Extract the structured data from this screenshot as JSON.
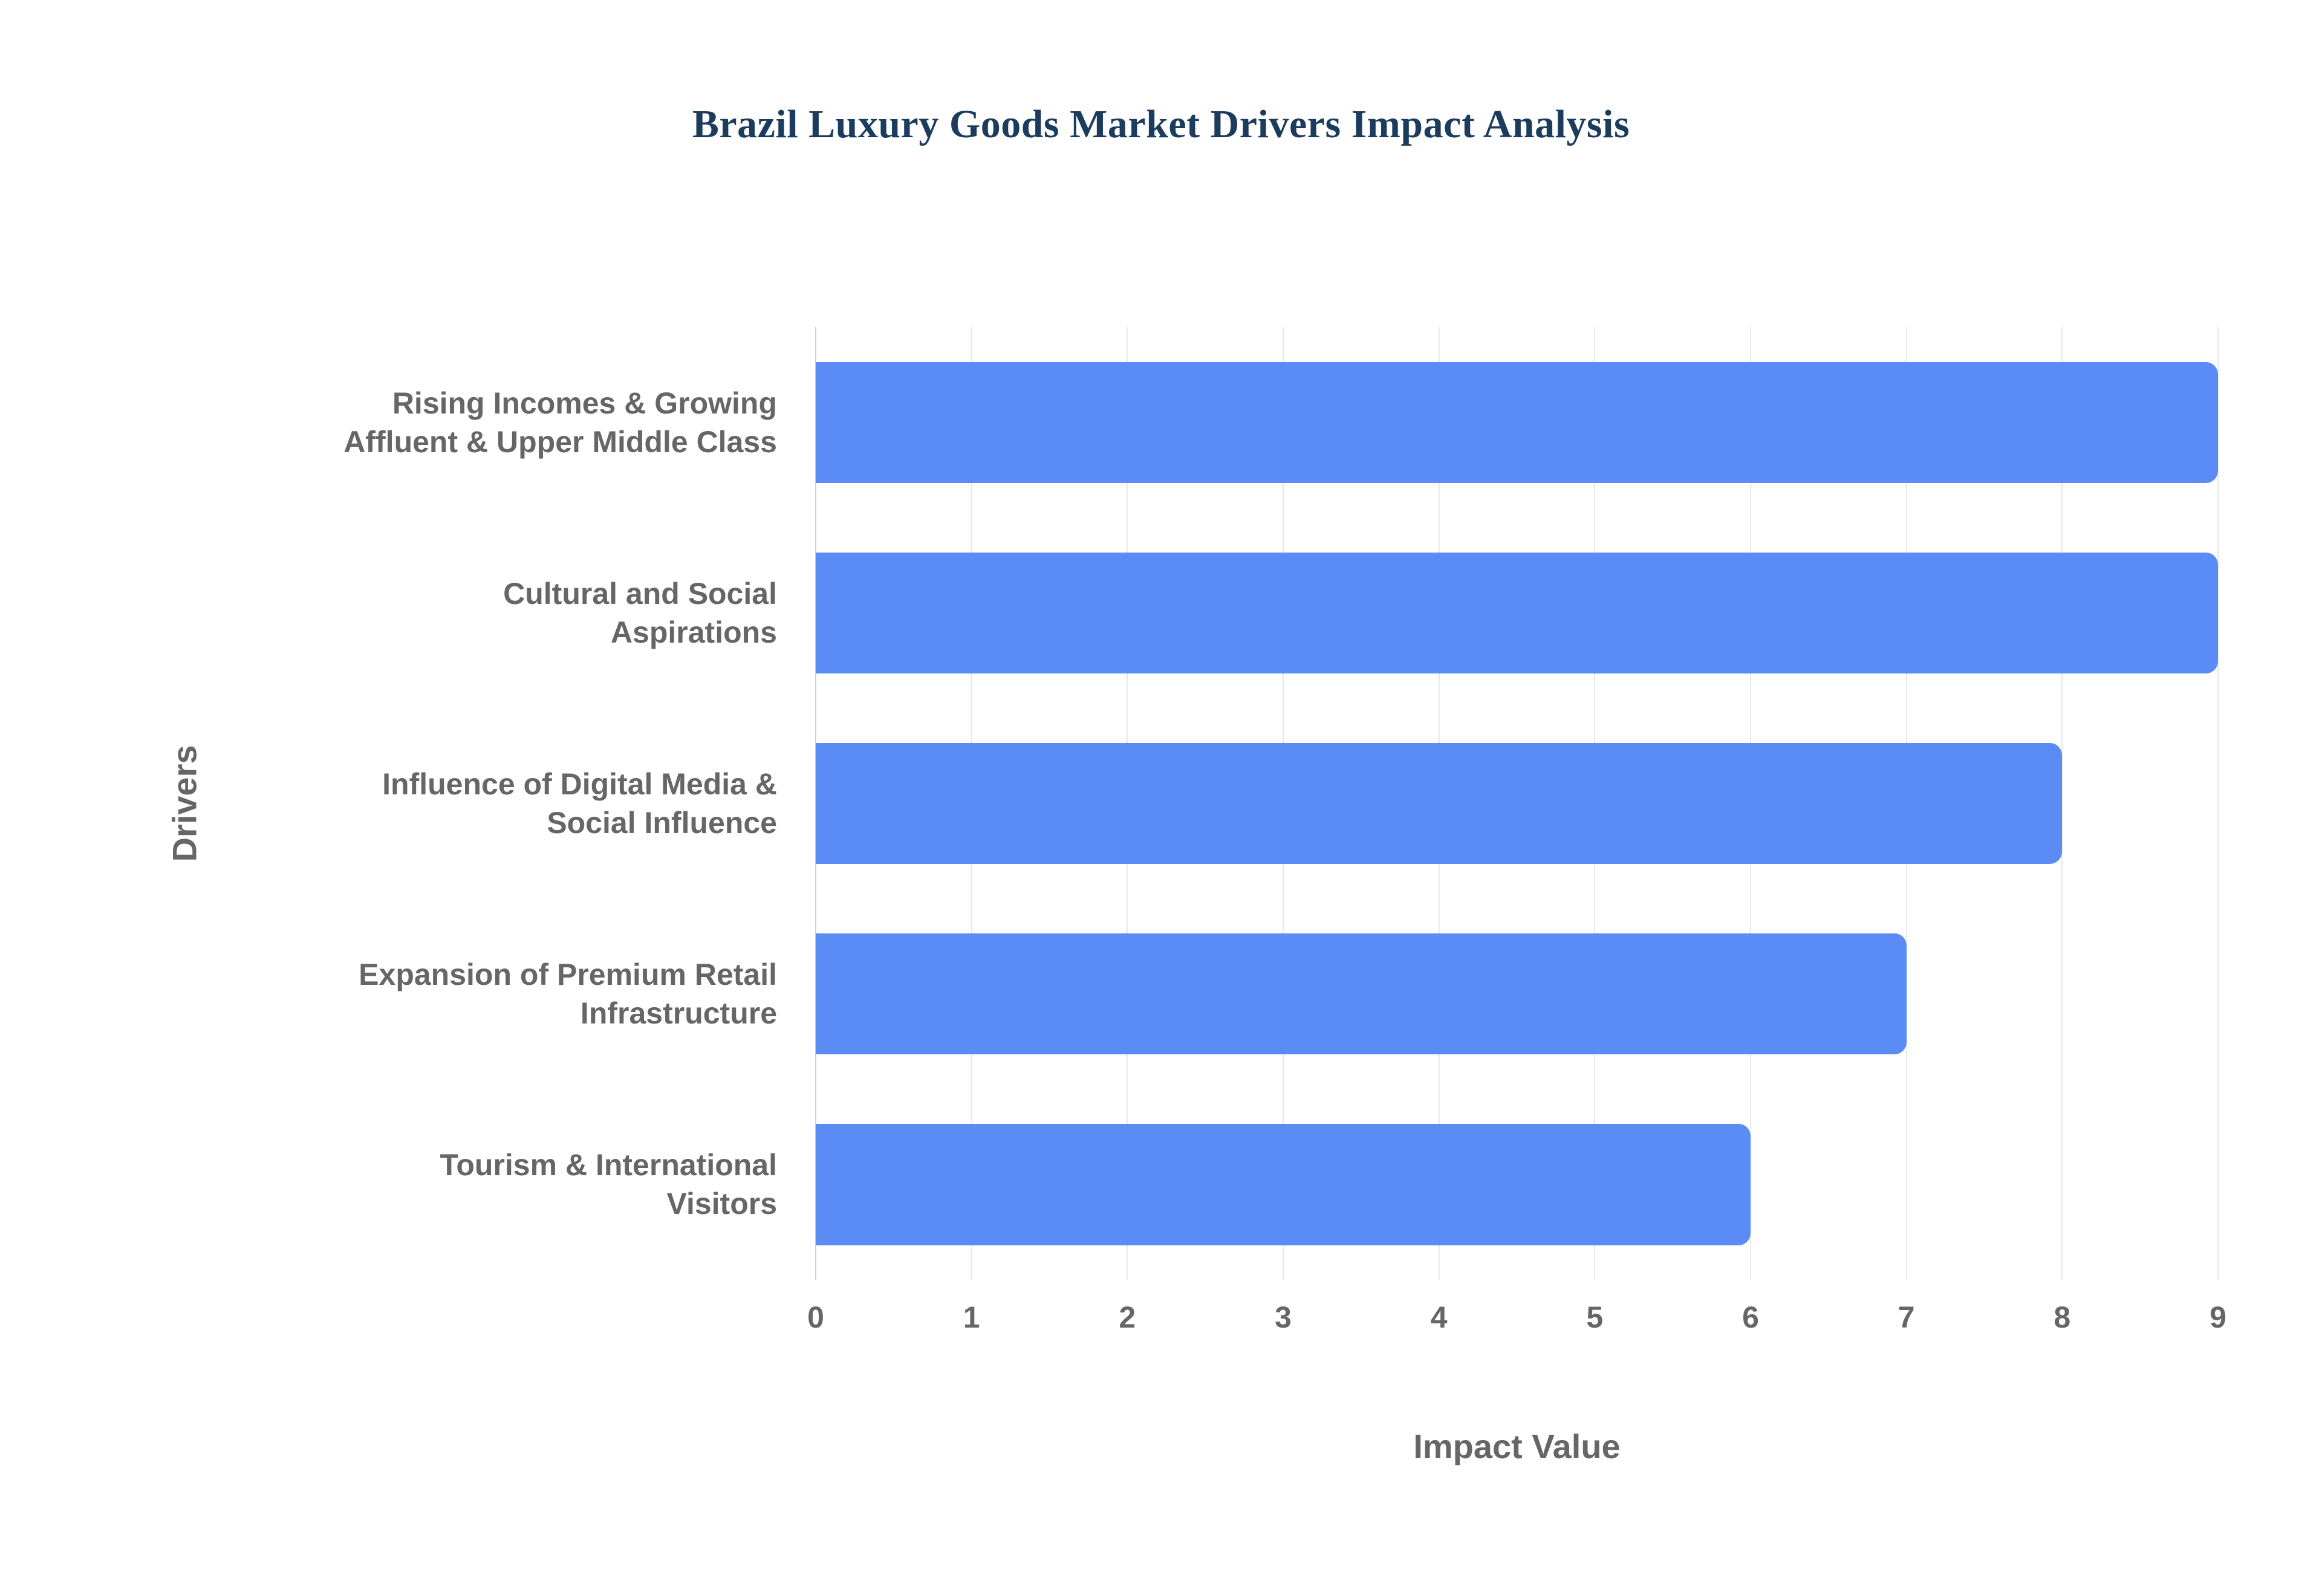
{
  "page": {
    "background_color": "#ffffff"
  },
  "chart_data": {
    "type": "bar",
    "orientation": "horizontal",
    "title": "Brazil Luxury Goods Market Drivers Impact Analysis",
    "xlabel": "Impact Value",
    "ylabel": "Drivers",
    "categories": [
      "Rising Incomes & Growing\nAffluent & Upper Middle Class",
      "Cultural and Social\nAspirations",
      "Influence of Digital Media &\nSocial Influence",
      "Expansion of Premium Retail\nInfrastructure",
      "Tourism & International\nVisitors"
    ],
    "values": [
      9,
      9,
      8,
      7,
      6
    ],
    "xlim": [
      0,
      9
    ],
    "xticks": [
      0,
      1,
      2,
      3,
      4,
      5,
      6,
      7,
      8,
      9
    ],
    "grid": true,
    "legend": false,
    "bar_color": "#5b8cf5",
    "title_color": "#1c3c5e",
    "axis_text_color": "#666666",
    "gridline_color": "#e8e8e8",
    "zero_line_color": "#cfcfcf"
  }
}
